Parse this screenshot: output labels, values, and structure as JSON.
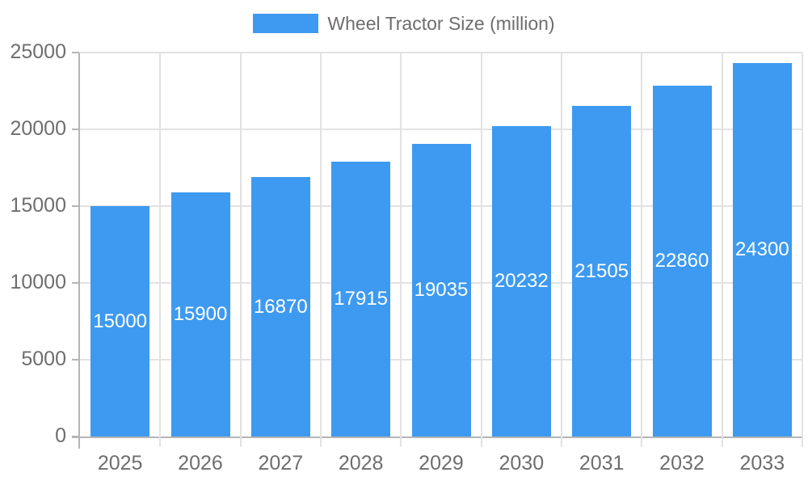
{
  "chart_data": {
    "type": "bar",
    "title": "",
    "series_name": "Wheel Tractor Size (million)",
    "categories": [
      "2025",
      "2026",
      "2027",
      "2028",
      "2029",
      "2030",
      "2031",
      "2032",
      "2033"
    ],
    "values": [
      15000,
      15900,
      16870,
      17915,
      19035,
      20232,
      21505,
      22860,
      24300
    ],
    "data_labels": [
      "15000",
      "15900",
      "16870",
      "17915",
      "19035",
      "20232",
      "21505",
      "22860",
      "24300"
    ],
    "data_labels_visible": true,
    "xlabel": "",
    "ylabel": "",
    "ylim": [
      0,
      25000
    ],
    "ytick_interval": 5000,
    "yticks": [
      0,
      5000,
      10000,
      15000,
      20000,
      25000
    ],
    "grid": true,
    "legend_position": "top-center",
    "colors": {
      "bar": "#3d9af0",
      "grid_line": "#e2e2e2",
      "axis_line": "#b5b5b5",
      "tick_label_text": "#6e6e6e",
      "legend_text": "#6d6d6d",
      "bar_label_text": "#ffffff",
      "background": "#ffffff"
    }
  }
}
